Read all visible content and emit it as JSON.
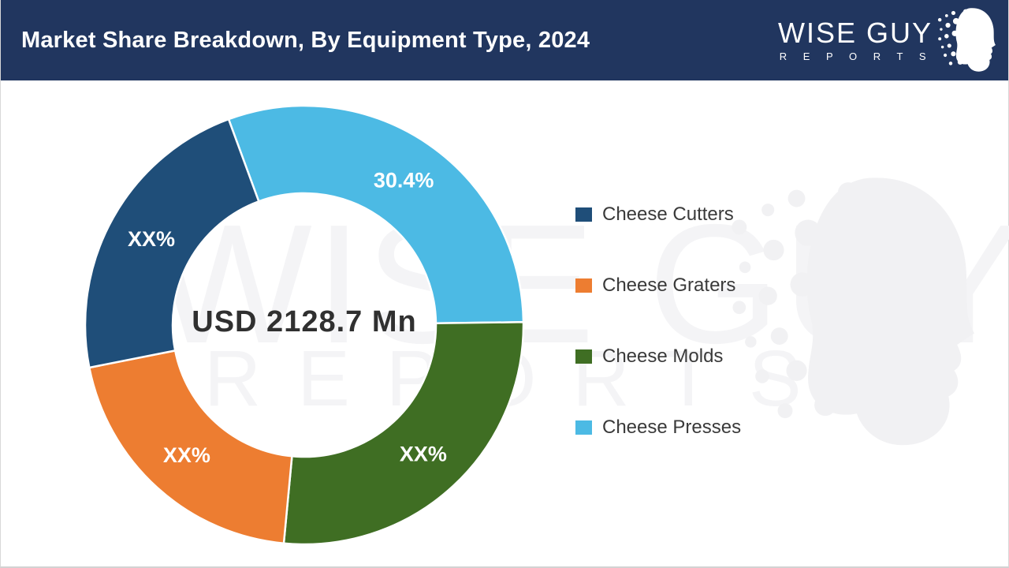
{
  "header": {
    "title": "Market Share Breakdown, By Equipment Type, 2024",
    "logo": {
      "line1": "WISE GUY",
      "line2": "R E P O R T S"
    }
  },
  "colors": {
    "header_bg": "#21365F"
  },
  "watermark": {
    "line1": "WISE GUY",
    "line2": "REPORTS"
  },
  "chart_data": {
    "type": "pie",
    "subtype": "donut",
    "title": "Market Share Breakdown, By Equipment Type, 2024",
    "center_label": "USD 2128.7 Mn",
    "categories": [
      "Cheese Cutters",
      "Cheese Graters",
      "Cheese Molds",
      "Cheese Presses"
    ],
    "values": [
      22.5,
      20.4,
      26.7,
      30.4
    ],
    "display_labels": [
      "XX%",
      "XX%",
      "XX%",
      "30.4%"
    ],
    "colors": [
      "#1F4E79",
      "#ED7D31",
      "#3F6E23",
      "#4CBAE4"
    ],
    "start_angle_deg": -20.2,
    "draw_order": [
      3,
      2,
      1,
      0
    ],
    "donut_hole_ratio": 0.6,
    "legend_position": "right",
    "label_color": "#ffffff"
  }
}
